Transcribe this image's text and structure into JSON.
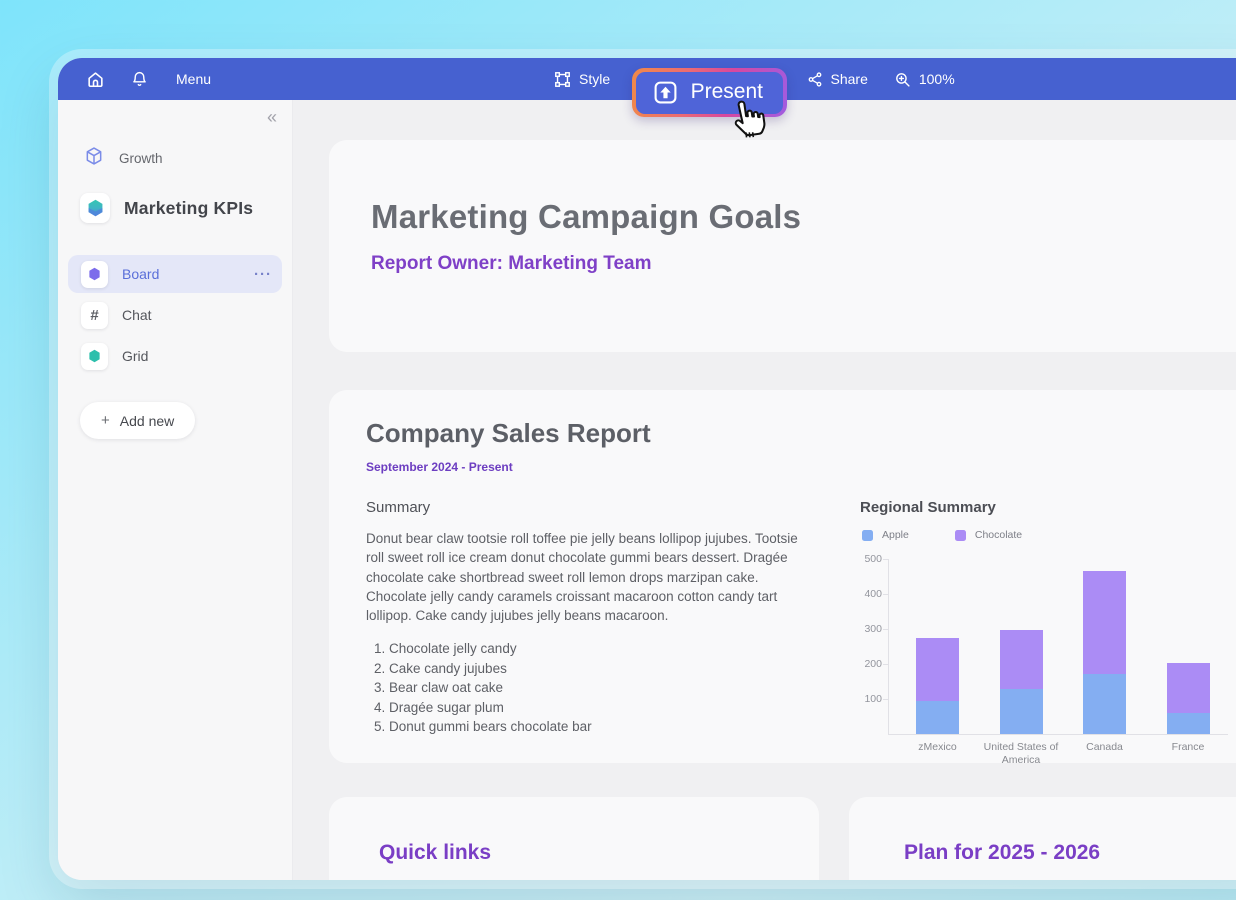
{
  "topbar": {
    "menu_label": "Menu",
    "style_label": "Style",
    "present_label": "Present",
    "share_label": "Share",
    "zoom_level": "100%"
  },
  "sidebar": {
    "collapse_glyph": "«",
    "workspace_label": "Growth",
    "doc_title": "Marketing KPIs",
    "items": [
      {
        "label": "Board",
        "active": true,
        "dots": "···"
      },
      {
        "label": "Chat",
        "active": false
      },
      {
        "label": "Grid",
        "active": false
      }
    ],
    "add_new": {
      "plus": "+",
      "label": "Add new"
    }
  },
  "hero": {
    "title": "Marketing Campaign Goals",
    "subtitle": "Report Owner: Marketing Team"
  },
  "report": {
    "title": "Company Sales Report",
    "date_range": "September 2024 - Present",
    "summary_heading": "Summary",
    "summary_text": "Donut bear claw tootsie roll toffee pie jelly beans lollipop jujubes. Tootsie roll sweet roll ice cream donut chocolate gummi bears dessert. Dragée chocolate cake shortbread sweet roll lemon drops marzipan cake. Chocolate jelly candy caramels croissant macaroon cotton candy tart lollipop. Cake candy jujubes jelly beans macaroon.",
    "list_items": [
      "Chocolate jelly candy",
      "Cake candy jujubes",
      "Bear claw oat cake",
      "Dragée sugar plum",
      "Donut gummi bears chocolate bar"
    ]
  },
  "chart_data": {
    "type": "bar",
    "stacked": true,
    "title": "Regional Summary",
    "categories": [
      "zMexico",
      "United States of America",
      "Canada",
      "France"
    ],
    "series": [
      {
        "name": "Apple",
        "color": "#84aef2",
        "values": [
          95,
          130,
          172,
          60
        ]
      },
      {
        "name": "Chocolate",
        "color": "#ab8cf5",
        "values": [
          180,
          167,
          293,
          143
        ]
      }
    ],
    "totals": [
      275,
      297,
      465,
      203
    ],
    "ylim": [
      0,
      500
    ],
    "yticks": [
      100,
      200,
      300,
      400,
      500
    ],
    "grid": false,
    "legend_position": "top"
  },
  "bottom_cards": {
    "quick_links_title": "Quick links",
    "plan_title": "Plan for 2025 - 2026"
  },
  "colors": {
    "topbar_bg": "#4661d0",
    "present_gradient_start": "#f18a48",
    "present_gradient_end": "#a05ce2",
    "accent_purple_text": "#7a3ec5",
    "active_item_bg": "#e4e7f8",
    "active_item_text": "#5a6fd9",
    "apple_bar": "#84aef2",
    "chocolate_bar": "#ab8cf5",
    "background_cyan": "#9ae8f9"
  }
}
